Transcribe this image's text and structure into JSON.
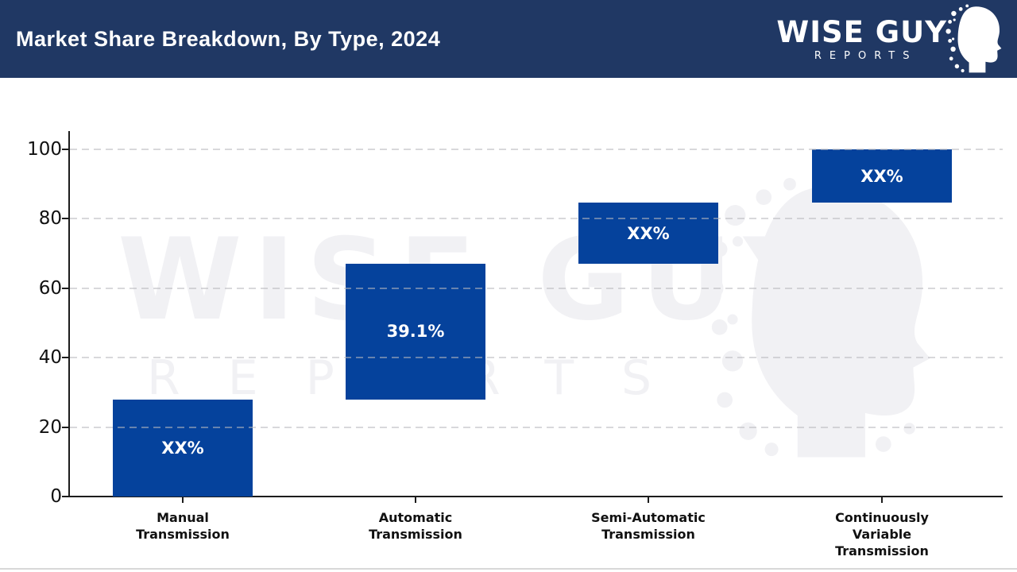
{
  "header": {
    "title": "Market Share Breakdown, By Type, 2024",
    "logo": {
      "line1": "WISE GUY",
      "line2": "REPORTS"
    }
  },
  "watermark": {
    "line1": "WISE GUY",
    "line2": "REPORTS"
  },
  "theme": {
    "header_bg": "#203864",
    "bar_color": "#05429C",
    "bar_label_color": "#ffffff",
    "grid_color": "#bebebe",
    "axis_color": "#1c1c1c",
    "watermark_color": "#f1f1f4"
  },
  "chart_data": {
    "type": "bar",
    "variant": "waterfall",
    "title": "Market Share Breakdown, By Type, 2024",
    "categories": [
      "Manual\nTransmission",
      "Automatic\nTransmission",
      "Semi-Automatic\nTransmission",
      "Continuously\nVariable\nTransmission"
    ],
    "values": [
      28,
      39.1,
      17.5,
      15.4
    ],
    "segments": [
      {
        "start": 0,
        "end": 28,
        "label": "XX%"
      },
      {
        "start": 28,
        "end": 67.1,
        "label": "39.1%"
      },
      {
        "start": 67.1,
        "end": 84.6,
        "label": "XX%"
      },
      {
        "start": 84.6,
        "end": 100,
        "label": "XX%"
      }
    ],
    "ylim": [
      0,
      100
    ],
    "yticks": [
      0,
      20,
      40,
      60,
      80,
      100
    ],
    "xlabel": "",
    "ylabel": "",
    "grid": "horizontal-dashed",
    "legend": "none"
  }
}
